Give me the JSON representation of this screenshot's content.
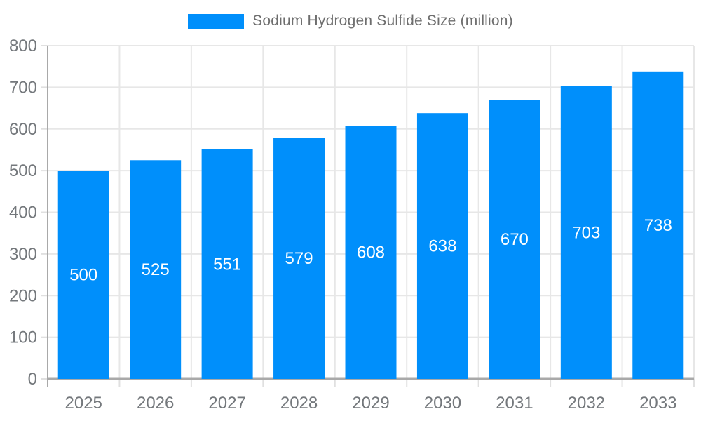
{
  "chart_data": {
    "type": "bar",
    "title": "",
    "legend": "Sodium Hydrogen Sulfide Size (million)",
    "legend_position": "top-center",
    "categories": [
      "2025",
      "2026",
      "2027",
      "2028",
      "2029",
      "2030",
      "2031",
      "2032",
      "2033"
    ],
    "series": [
      {
        "name": "Sodium Hydrogen Sulfide Size (million)",
        "values": [
          500,
          525,
          551,
          579,
          608,
          638,
          670,
          703,
          738
        ]
      }
    ],
    "value_labels_shown": true,
    "xlabel": "",
    "ylabel": "",
    "ylim": [
      0,
      800
    ],
    "ytick_step": 100,
    "grid": true,
    "colors": {
      "bar": "#008FFB",
      "bar_value_text": "#ffffff",
      "gridline": "#e7e7e7",
      "tick": "#e0e0e0",
      "axis_line": "#a9a9a9",
      "axis_label_text": "#74787c",
      "legend_text": "#6e6e6e",
      "background": "#ffffff"
    }
  }
}
